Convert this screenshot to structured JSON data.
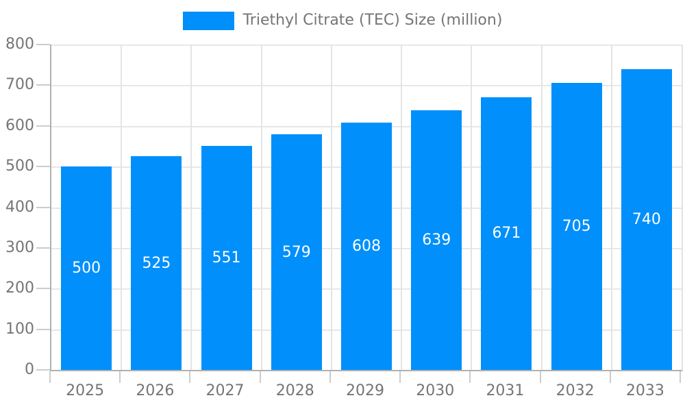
{
  "legend": {
    "label": "Triethyl Citrate (TEC) Size (million)",
    "swatch_color": "#008FFB"
  },
  "chart_data": {
    "type": "bar",
    "title": "Triethyl Citrate (TEC) Size (million)",
    "categories": [
      "2025",
      "2026",
      "2027",
      "2028",
      "2029",
      "2030",
      "2031",
      "2032",
      "2033"
    ],
    "series": [
      {
        "name": "Triethyl Citrate (TEC) Size (million)",
        "values": [
          500,
          525,
          551,
          579,
          608,
          639,
          671,
          705,
          740
        ]
      }
    ],
    "xlabel": "",
    "ylabel": "",
    "ylim": [
      0,
      800
    ],
    "ytick_step": 100,
    "y_tick_labels": [
      "0",
      "100",
      "200",
      "300",
      "400",
      "500",
      "600",
      "700",
      "800"
    ],
    "grid": true,
    "legend_position": "top",
    "value_labels": "centered-white-inside-bars",
    "colors": {
      "bar": "#008FFB",
      "value_label": "#FFFFFF",
      "axis_text": "#757575",
      "axis_line": "#b0b0b0",
      "tick": "#cccccc",
      "grid": "#e7e7e7"
    }
  }
}
